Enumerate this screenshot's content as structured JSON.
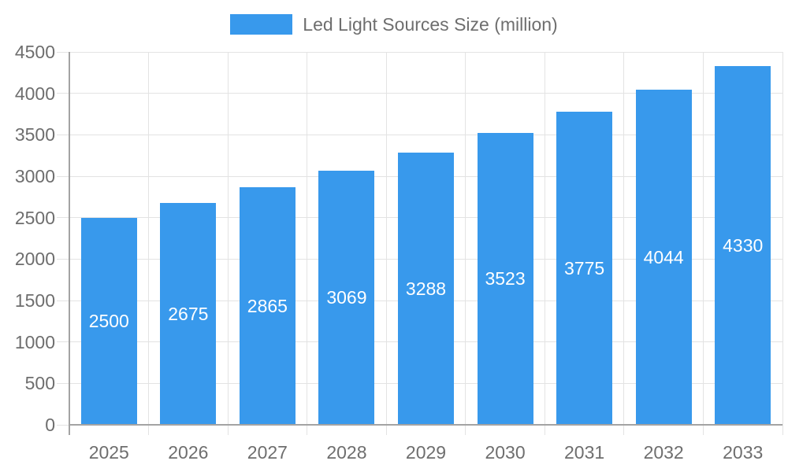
{
  "chart_data": {
    "type": "bar",
    "title": "",
    "legend_position": "top",
    "categories": [
      "2025",
      "2026",
      "2027",
      "2028",
      "2029",
      "2030",
      "2031",
      "2032",
      "2033"
    ],
    "series": [
      {
        "name": "Led Light Sources Size (million)",
        "values": [
          2500,
          2675,
          2865,
          3069,
          3288,
          3523,
          3775,
          4044,
          4330
        ]
      }
    ],
    "xlabel": "",
    "ylabel": "",
    "ylim": [
      0,
      4500
    ],
    "ytick_step": 500,
    "grid": true,
    "value_labels_inside_bars": true,
    "colors": {
      "bar": "#3899EC",
      "grid": "#e3e3e3",
      "axis_line": "#a3a3a3",
      "axis_text": "#6e6e6e",
      "value_label": "#ffffff",
      "background": "#ffffff"
    }
  }
}
